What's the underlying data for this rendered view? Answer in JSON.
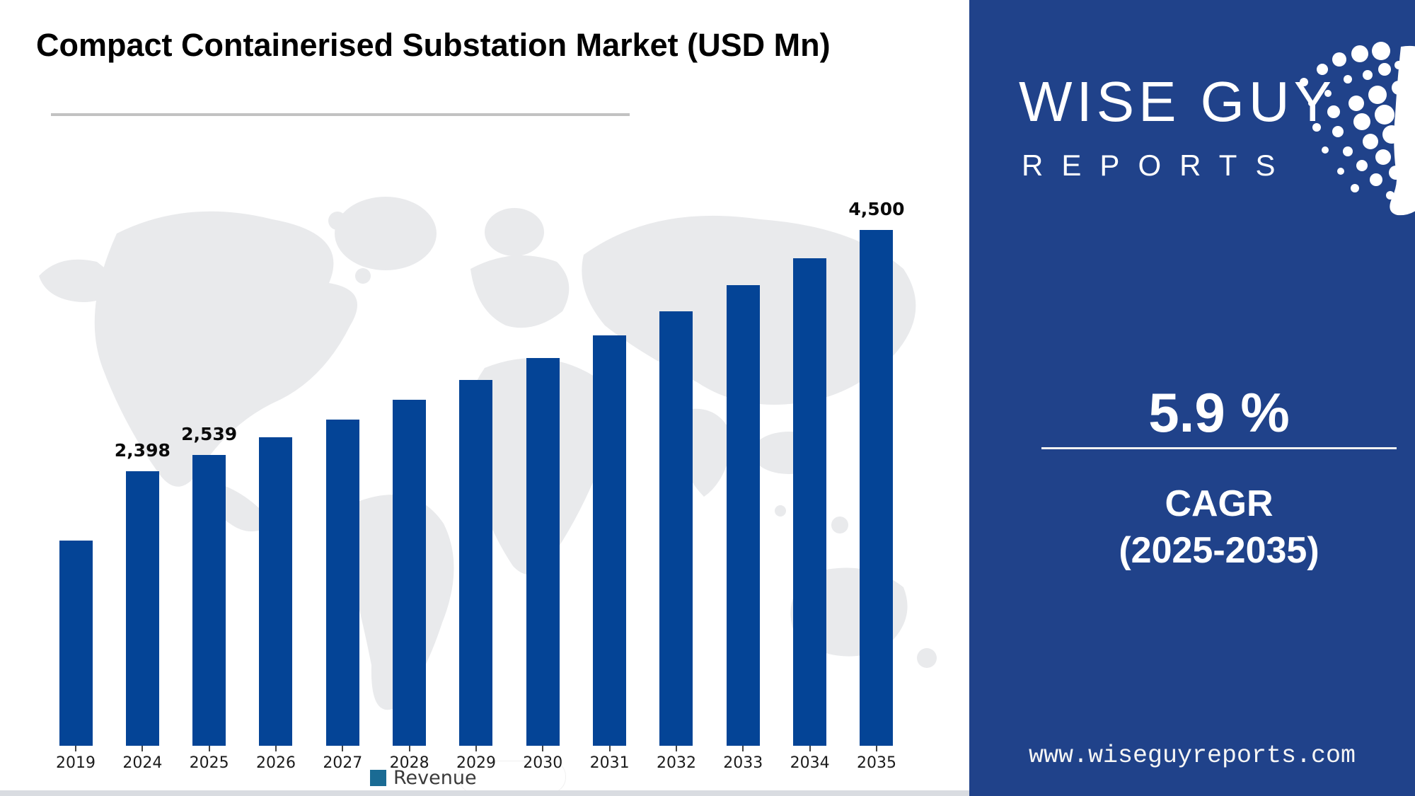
{
  "header": {
    "title": "Compact Containerised Substation Market (USD Mn)"
  },
  "chart_data": {
    "type": "bar",
    "title": "Compact Containerised Substation Market (USD Mn)",
    "unit": "USD Mn",
    "categories": [
      "2019",
      "2024",
      "2025",
      "2026",
      "2027",
      "2028",
      "2029",
      "2030",
      "2031",
      "2032",
      "2033",
      "2034",
      "2035"
    ],
    "values": [
      1790,
      2398,
      2539,
      2689,
      2848,
      3016,
      3194,
      3382,
      3581,
      3793,
      4017,
      4254,
      4500
    ],
    "point_labels": [
      "",
      "2,398",
      "2,539",
      "",
      "",
      "",
      "",
      "",
      "",
      "",
      "",
      "",
      "4,500"
    ],
    "ylim": [
      0,
      4800
    ],
    "grid": false,
    "xlabel": "",
    "ylabel": "",
    "legend_entries": [
      "Revenue"
    ],
    "legend_position": "bottom-center",
    "series_color": "#044496"
  },
  "legend": {
    "label": "Revenue",
    "swatch_color": "#1a6b94"
  },
  "brand_panel": {
    "logo_line1": "WISE GUY",
    "logo_line2": "REPORTS",
    "cagr_value": "5.9 %",
    "cagr_label": "CAGR",
    "cagr_period": "(2025-2035)",
    "website": "www.wiseguyreports.com"
  },
  "colors": {
    "bar": "#044496",
    "panel_background": "#20428a",
    "legend_swatch": "#1a6b94",
    "map": "#e9eaec",
    "title_underline": "#c2c2c2"
  }
}
